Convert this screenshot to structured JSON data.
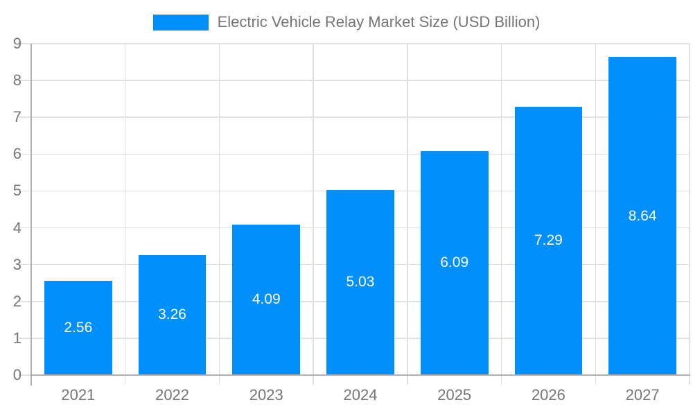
{
  "chart_data": {
    "type": "bar",
    "title": "Electric Vehicle Relay Market Size (USD Billion)",
    "legend": {
      "position": "top",
      "entries": [
        "Electric Vehicle Relay Market Size (USD Billion)"
      ]
    },
    "categories": [
      "2021",
      "2022",
      "2023",
      "2024",
      "2025",
      "2026",
      "2027"
    ],
    "values": [
      2.56,
      3.26,
      4.09,
      5.03,
      6.09,
      7.29,
      8.64
    ],
    "value_labels": [
      "2.56",
      "3.26",
      "4.09",
      "5.03",
      "6.09",
      "7.29",
      "8.64"
    ],
    "xlabel": "",
    "ylabel": "",
    "ylim": [
      0,
      9
    ],
    "yticks": [
      0,
      1,
      2,
      3,
      4,
      5,
      6,
      7,
      8,
      9
    ],
    "grid": true,
    "colors": {
      "bar": "#008FFB",
      "value_label": "#FFFFFF",
      "axis_label": "#757575",
      "grid_line": "#E0E0E0",
      "axis_line": "#B0B0B0",
      "background": "#FFFFFF"
    }
  }
}
